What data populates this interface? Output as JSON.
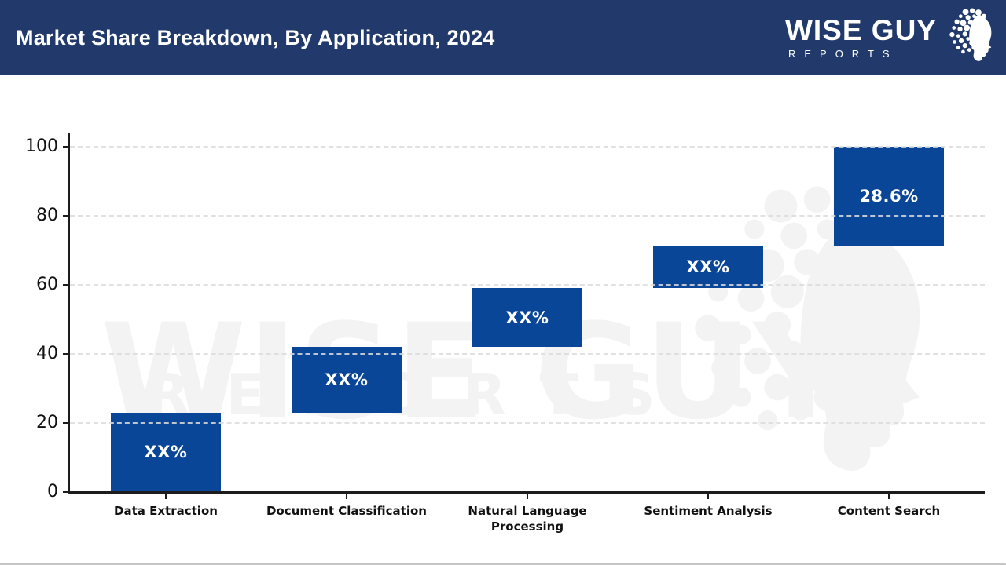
{
  "header": {
    "title": "Market Share Breakdown, By Application, 2024",
    "logo": {
      "line1": "WISE GUY",
      "line2": "REPORTS"
    }
  },
  "watermark": {
    "line1": "WISE GUY",
    "line2": "REPORTS"
  },
  "colors": {
    "header_bg": "#213A6B",
    "bar": "#0A4697",
    "bar_label": "#FFFFFF",
    "axis": "#1C1C1C",
    "grid": "#DCDCDC",
    "tick_label": "#111111",
    "watermark": "#F3F3F3"
  },
  "chart_data": {
    "type": "bar",
    "subtype": "waterfall",
    "title": "Market Share Breakdown, By Application, 2024",
    "categories": [
      "Data Extraction",
      "Document Classification",
      "Natural Language Processing",
      "Sentiment Analysis",
      "Content Search"
    ],
    "segments": [
      {
        "category": "Data Extraction",
        "start": 0,
        "end": 23,
        "label": "XX%"
      },
      {
        "category": "Document Classification",
        "start": 23,
        "end": 42,
        "label": "XX%"
      },
      {
        "category": "Natural Language Processing",
        "start": 42,
        "end": 59,
        "label": "XX%"
      },
      {
        "category": "Sentiment Analysis",
        "start": 59,
        "end": 71.4,
        "label": "XX%"
      },
      {
        "category": "Content Search",
        "start": 71.4,
        "end": 100,
        "label": "28.6%"
      }
    ],
    "ylim": [
      0,
      100
    ],
    "yticks": [
      0,
      20,
      40,
      60,
      80,
      100
    ],
    "xlabel": "",
    "ylabel": "",
    "grid": "horizontal-dashed",
    "legend": "none",
    "bar_color": "#0A4697",
    "label_color": "#FFFFFF"
  }
}
